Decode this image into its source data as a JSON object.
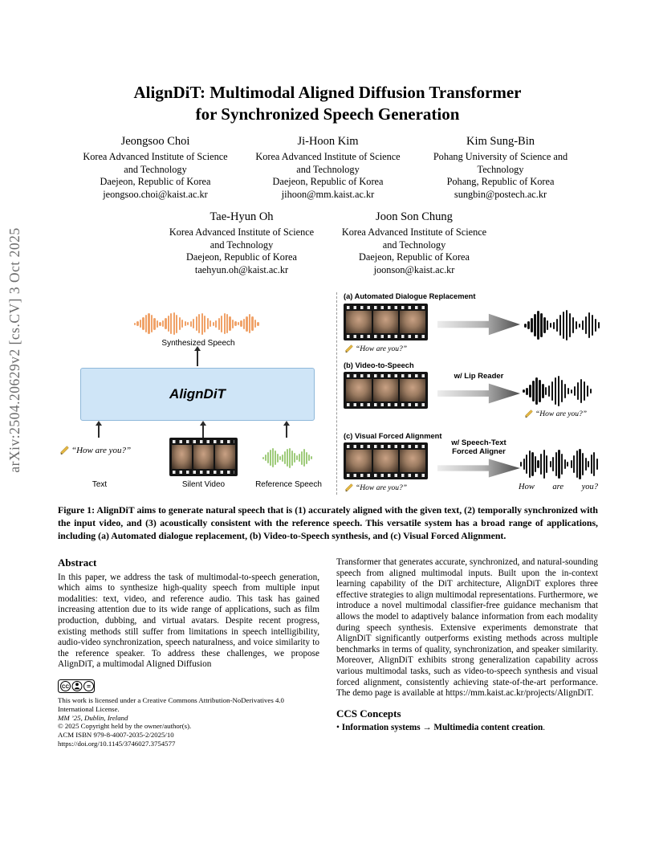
{
  "page": {
    "arxiv_label": "arXiv:2504.20629v2  [cs.CV]  3 Oct 2025"
  },
  "title": {
    "line1": "AlignDiT: Multimodal Aligned Diffusion Transformer",
    "line2": "for Synchronized Speech Generation"
  },
  "authors": [
    {
      "name": "Jeongsoo Choi",
      "affil1": "Korea Advanced Institute of Science",
      "affil2": "and Technology",
      "affil3": "Daejeon, Republic of Korea",
      "email": "jeongsoo.choi@kaist.ac.kr"
    },
    {
      "name": "Ji-Hoon Kim",
      "affil1": "Korea Advanced Institute of Science",
      "affil2": "and Technology",
      "affil3": "Daejeon, Republic of Korea",
      "email": "jihoon@mm.kaist.ac.kr"
    },
    {
      "name": "Kim Sung-Bin",
      "affil1": "Pohang University of Science and",
      "affil2": "Technology",
      "affil3": "Pohang, Republic of Korea",
      "email": "sungbin@postech.ac.kr"
    },
    {
      "name": "Tae-Hyun Oh",
      "affil1": "Korea Advanced Institute of Science",
      "affil2": "and Technology",
      "affil3": "Daejeon, Republic of Korea",
      "email": "taehyun.oh@kaist.ac.kr"
    },
    {
      "name": "Joon Son Chung",
      "affil1": "Korea Advanced Institute of Science",
      "affil2": "and Technology",
      "affil3": "Daejeon, Republic of Korea",
      "email": "joonson@kaist.ac.kr"
    }
  ],
  "figure": {
    "colors": {
      "synth_wave": "#F0A268",
      "ref_wave": "#9FCB7B",
      "output_wave": "#141414",
      "model_box_fill": "#CFE5F7",
      "model_box_border": "#8FB8DA"
    },
    "left": {
      "synthesized_label": "Synthesized Speech",
      "model_name": "AlignDiT",
      "text_input": "“How are you?”",
      "text_label": "Text",
      "video_label": "Silent Video",
      "ref_label": "Reference Speech"
    },
    "right": {
      "a": {
        "title": "(a) Automated Dialogue Replacement",
        "quote": "“How are you?”"
      },
      "b": {
        "title": "(b) Video-to-Speech",
        "arrow_label": "w/ Lip Reader",
        "quote": "“How are you?”"
      },
      "c": {
        "title": "(c) Visual Forced Alignment",
        "arrow_label1": "w/ Speech-Text",
        "arrow_label2": "Forced Aligner",
        "quote": "“How are you?”",
        "words": [
          "How",
          "are",
          "you?"
        ]
      }
    }
  },
  "caption": "Figure 1: AlignDiT aims to generate natural speech that is (1) accurately aligned with the given text, (2) temporally synchronized with the input video, and (3) acoustically consistent with the reference speech. This versatile system has a broad range of applications, including (a) Automated dialogue replacement, (b) Video-to-Speech synthesis, and (c) Visual Forced Alignment.",
  "abstract": {
    "heading": "Abstract",
    "col1": "In this paper, we address the task of multimodal-to-speech generation, which aims to synthesize high-quality speech from multiple input modalities: text, video, and reference audio. This task has gained increasing attention due to its wide range of applications, such as film production, dubbing, and virtual avatars. Despite recent progress, existing methods still suffer from limitations in speech intelligibility, audio-video synchronization, speech naturalness, and voice similarity to the reference speaker. To address these challenges, we propose AlignDiT, a multimodal Aligned Diffusion",
    "col2": "Transformer that generates accurate, synchronized, and natural-sounding speech from aligned multimodal inputs. Built upon the in-context learning capability of the DiT architecture, AlignDiT explores three effective strategies to align multimodal representations. Furthermore, we introduce a novel multimodal classifier-free guidance mechanism that allows the model to adaptively balance information from each modality during speech synthesis. Extensive experiments demonstrate that AlignDiT significantly outperforms existing methods across multiple benchmarks in terms of quality, synchronization, and speaker similarity. Moreover, AlignDiT exhibits strong generalization capability across various multimodal tasks, such as video-to-speech synthesis and visual forced alignment, consistently achieving state-of-the-art performance. The demo page is available at https://mm.kaist.ac.kr/projects/AlignDiT."
  },
  "license": {
    "line1": "This work is licensed under a Creative Commons Attribution-NoDerivatives 4.0 International License.",
    "venue": "MM ’25, Dublin, Ireland",
    "copyright": "© 2025 Copyright held by the owner/author(s).",
    "isbn": "ACM ISBN 979-8-4007-2035-2/2025/10",
    "doi": "https://doi.org/10.1145/3746027.3754577"
  },
  "ccs": {
    "heading": "CCS Concepts",
    "bullet": "• ",
    "item_left": "Information systems",
    "arrow": " → ",
    "item_right": "Multimedia content creation",
    "period": "."
  }
}
